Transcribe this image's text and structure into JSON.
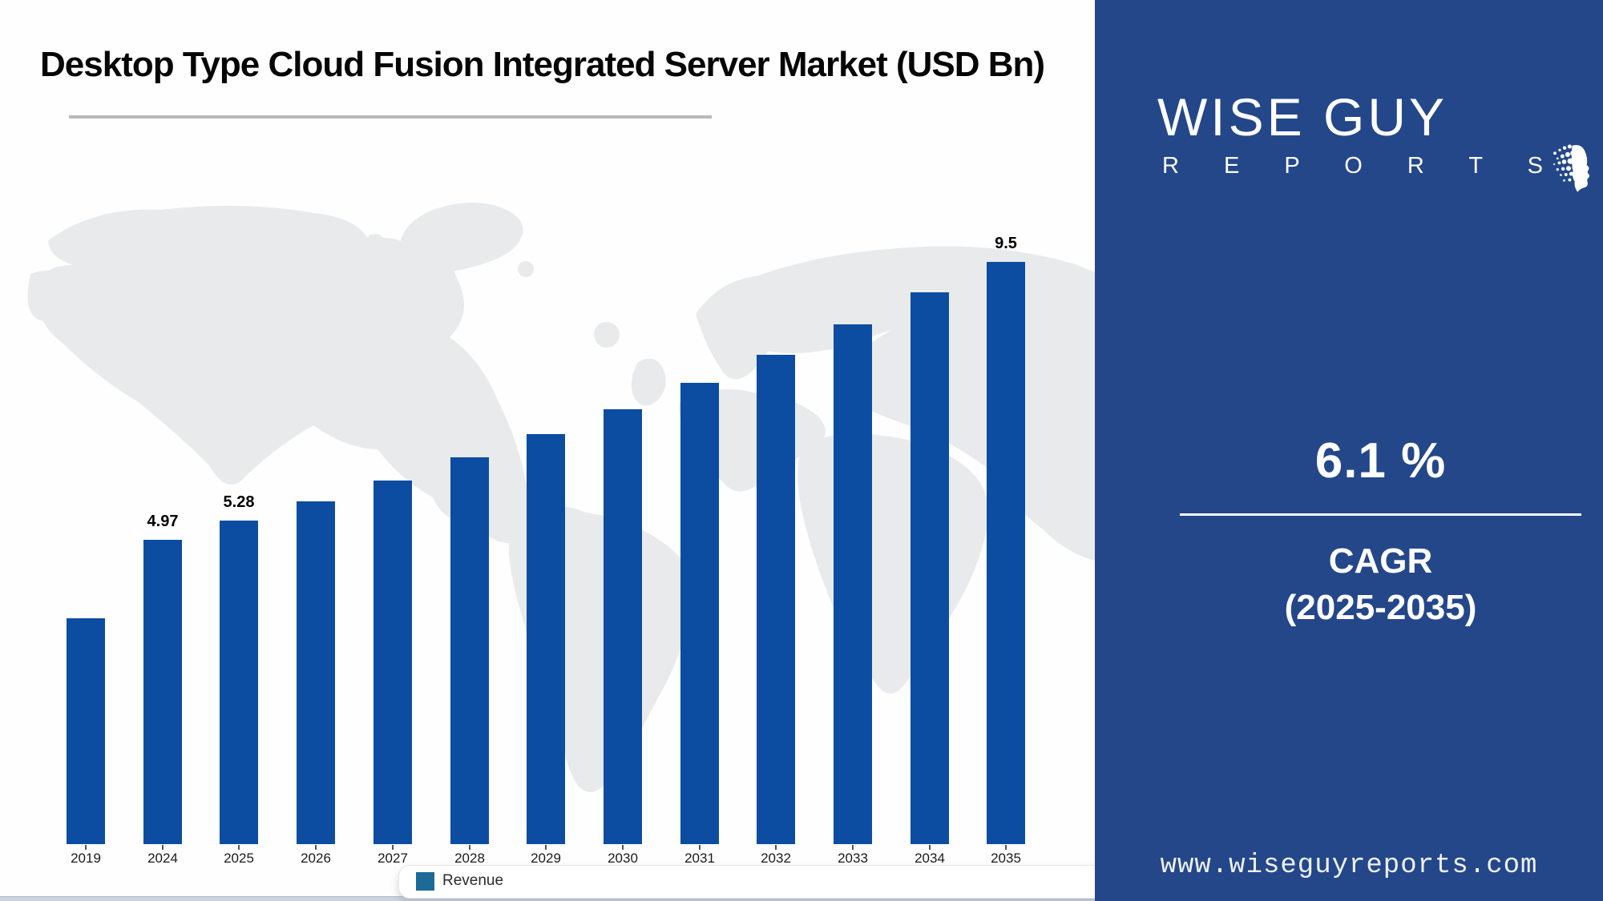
{
  "title": "Desktop Type Cloud Fusion Integrated Server Market (USD Bn)",
  "chart_data": {
    "type": "bar",
    "title": "Desktop Type Cloud Fusion Integrated Server Market (USD Bn)",
    "categories": [
      "2019",
      "2024",
      "2025",
      "2026",
      "2027",
      "2028",
      "2029",
      "2030",
      "2031",
      "2032",
      "2033",
      "2034",
      "2035"
    ],
    "values": [
      3.69,
      4.97,
      5.28,
      5.6,
      5.94,
      6.31,
      6.69,
      7.1,
      7.53,
      7.99,
      8.48,
      9.0,
      9.5
    ],
    "value_labels": [
      "",
      "4.97",
      "5.28",
      "",
      "",
      "",
      "",
      "",
      "",
      "",
      "",
      "",
      "9.5"
    ],
    "xlabel": "",
    "ylabel": "",
    "ylim": [
      0,
      10.8
    ],
    "grid": false,
    "bar_color": "#0c4da1",
    "legend_position": "bottom",
    "legend": [
      "Revenue"
    ]
  },
  "legend": {
    "label": "Revenue",
    "swatch_color": "#1d6a96"
  },
  "sidebar": {
    "bg_color": "#24478a",
    "logo_line1": "WISE GUY",
    "logo_line2": "R E P O R T S",
    "cagr_value": "6.1 %",
    "cagr_label_line1": "CAGR",
    "cagr_label_line2": "(2025-2035)",
    "website": "www.wiseguyreports.com"
  }
}
